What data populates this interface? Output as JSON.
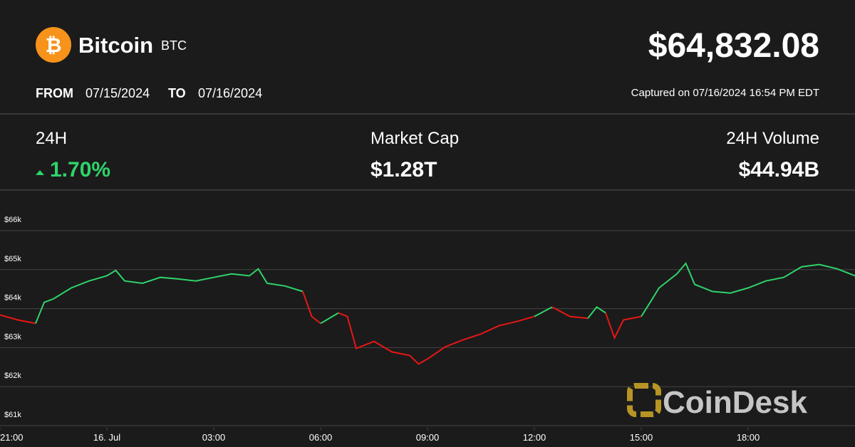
{
  "header": {
    "name": "Bitcoin",
    "symbol": "BTC",
    "price": "$64,832.08",
    "from_label": "FROM",
    "from_date": "07/15/2024",
    "to_label": "TO",
    "to_date": "07/16/2024",
    "captured": "Captured on 07/16/2024 16:54 PM EDT"
  },
  "stats": [
    {
      "label": "24H",
      "value": "1.70%"
    },
    {
      "label": "Market Cap",
      "value": "$1.28T"
    },
    {
      "label": "24H Volume",
      "value": "$44.94B"
    }
  ],
  "watermark": "CoinDesk",
  "chart_data": {
    "type": "line",
    "up_color": "#2fd36b",
    "down_color": "#e81616",
    "grid": true,
    "x": [
      -3,
      -2.5,
      -2,
      -1.76,
      -1.5,
      -1,
      -0.5,
      0,
      0.25,
      0.5,
      1,
      1.5,
      2,
      2.5,
      3,
      3.5,
      4,
      4.25,
      4.5,
      5,
      5.5,
      5.75,
      6,
      6.5,
      6.75,
      7,
      7.5,
      8,
      8.5,
      8.75,
      9,
      9.5,
      10,
      10.5,
      11,
      11.5,
      12,
      12.5,
      13,
      13.5,
      13.75,
      14,
      14.25,
      14.5,
      15,
      15.25,
      15.5,
      16,
      16.25,
      16.5,
      17,
      17.5,
      18,
      18.5,
      19,
      19.5,
      20,
      20.5,
      21
    ],
    "series": [
      {
        "values": [
          63.84,
          63.71,
          63.62,
          64.16,
          64.25,
          64.53,
          64.71,
          64.84,
          64.98,
          64.71,
          64.65,
          64.8,
          64.76,
          64.71,
          64.8,
          64.89,
          64.84,
          65.02,
          64.65,
          64.58,
          64.44,
          63.8,
          63.62,
          63.89,
          63.8,
          62.98,
          63.16,
          62.89,
          62.8,
          62.58,
          62.71,
          63.02,
          63.2,
          63.35,
          63.56,
          63.67,
          63.8,
          64.04,
          63.8,
          63.75,
          64.04,
          63.89,
          63.25,
          63.71,
          63.8,
          64.16,
          64.53,
          64.89,
          65.16,
          64.62,
          64.44,
          64.4,
          64.53,
          64.71,
          64.8,
          65.07,
          65.13,
          65.02,
          64.84
        ]
      }
    ],
    "xlim": [
      -3,
      21
    ],
    "xticks": [
      {
        "value": -3,
        "label": "21:00"
      },
      {
        "value": 0,
        "label": "16. Jul"
      },
      {
        "value": 3,
        "label": "03:00"
      },
      {
        "value": 6,
        "label": "06:00"
      },
      {
        "value": 9,
        "label": "09:00"
      },
      {
        "value": 12,
        "label": "12:00"
      },
      {
        "value": 15,
        "label": "15:00"
      },
      {
        "value": 18,
        "label": "18:00"
      }
    ],
    "ylim": [
      60.7,
      66.3
    ],
    "yticks": [
      {
        "value": 61,
        "label": "$61k"
      },
      {
        "value": 62,
        "label": "$62k"
      },
      {
        "value": 63,
        "label": "$63k"
      },
      {
        "value": 64,
        "label": "$64k"
      },
      {
        "value": 65,
        "label": "$65k"
      },
      {
        "value": 66,
        "label": "$66k"
      }
    ]
  }
}
